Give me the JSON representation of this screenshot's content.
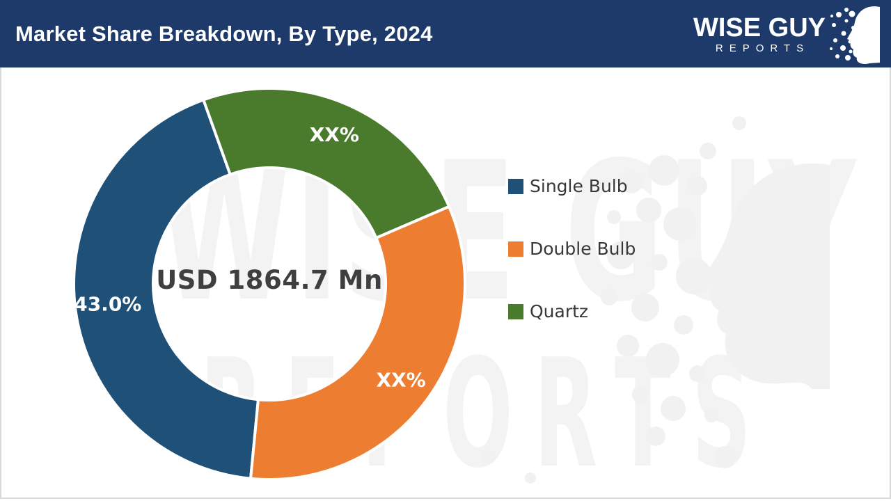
{
  "header": {
    "title": "Market Share Breakdown, By Type, 2024",
    "logo": {
      "line1": "WISE GUY",
      "line2": "REPORTS"
    }
  },
  "watermark": {
    "line1": "WISE GUY",
    "line2": "REPORTS"
  },
  "chart_data": {
    "type": "pie",
    "subtype": "donut",
    "title": "Market Share Breakdown, By Type, 2024",
    "center_label": "USD 1864.7 Mn",
    "categories": [
      "Single Bulb",
      "Double Bulb",
      "Quartz"
    ],
    "series": [
      {
        "name": "Single Bulb",
        "value": 43.0,
        "display_label": "43.0%",
        "color": "#1f5077"
      },
      {
        "name": "Double Bulb",
        "value": 33.0,
        "display_label": "XX%",
        "color": "#ed7d31"
      },
      {
        "name": "Quartz",
        "value": 24.0,
        "display_label": "XX%",
        "color": "#4a7a2b"
      }
    ],
    "legend_position": "right",
    "label_color": "#ffffff"
  },
  "colors": {
    "header_bg": "#1e3a6a",
    "center_text": "#3f3f3f",
    "legend_text": "#383838",
    "watermark": "#f3f3f3",
    "border": "#d9d9d9"
  }
}
